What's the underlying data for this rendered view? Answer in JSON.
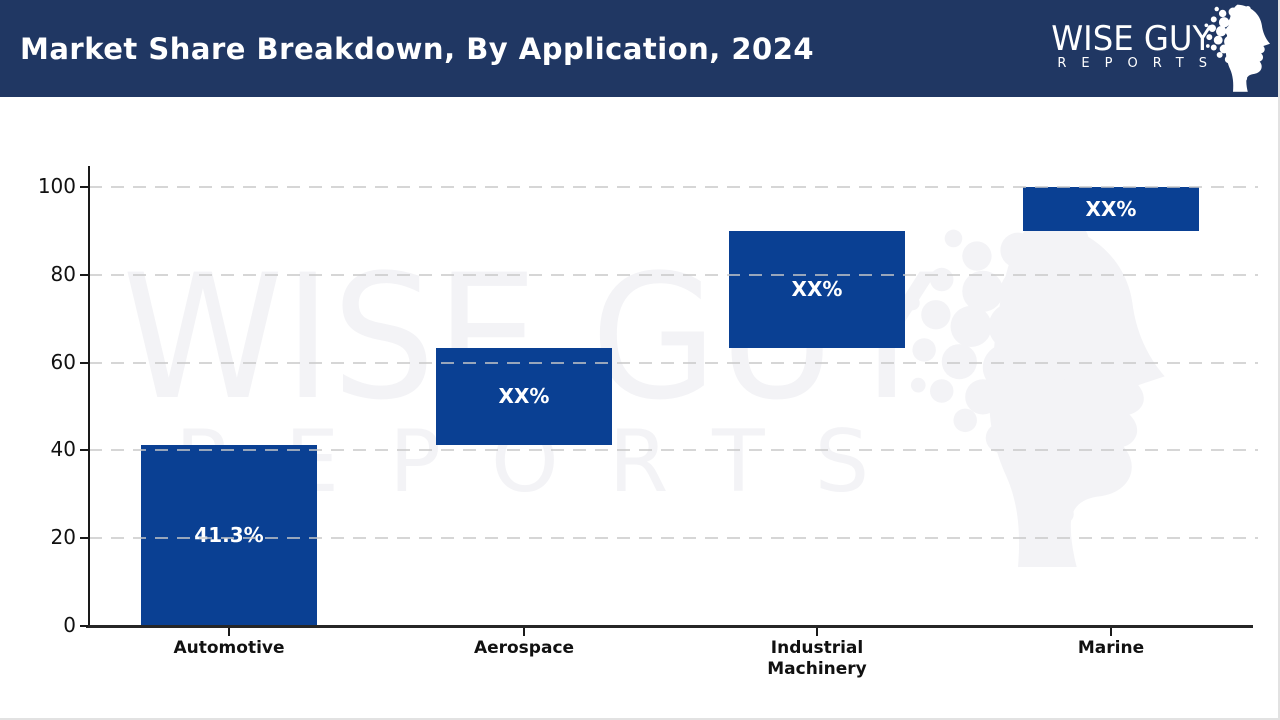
{
  "header": {
    "title": "Market Share Breakdown, By Application, 2024",
    "logo": {
      "line1": "WISE GUY",
      "line2": "REPORTS"
    }
  },
  "watermark": {
    "line1": "WISE GUY",
    "line2": "REPORTS"
  },
  "chart_data": {
    "type": "bar",
    "subtype": "floating-waterfall",
    "title": "Market Share Breakdown, By Application, 2024",
    "categories": [
      "Automotive",
      "Aerospace",
      "Industrial Machinery",
      "Marine"
    ],
    "bars": [
      {
        "category": "Automotive",
        "start": 0,
        "end": 41.3,
        "label": "41.3%"
      },
      {
        "category": "Aerospace",
        "start": 41.3,
        "end": 63.3,
        "label": "XX%"
      },
      {
        "category": "Industrial Machinery",
        "start": 63.3,
        "end": 90,
        "label": "XX%"
      },
      {
        "category": "Marine",
        "start": 90,
        "end": 100,
        "label": "XX%"
      }
    ],
    "xlabel": "",
    "ylabel": "",
    "ylim": [
      0,
      100
    ],
    "yticks": [
      0,
      20,
      40,
      60,
      80,
      100
    ],
    "grid": "horizontal-dashed",
    "legend": "none",
    "bar_color": "#0a4093",
    "label_color": "#ffffff"
  },
  "colors": {
    "header_bg": "#203763",
    "bar": "#0a4093",
    "axis": "#1a1a1a",
    "gridline": "#d9d9d9",
    "watermark": "#f3f3f6"
  }
}
